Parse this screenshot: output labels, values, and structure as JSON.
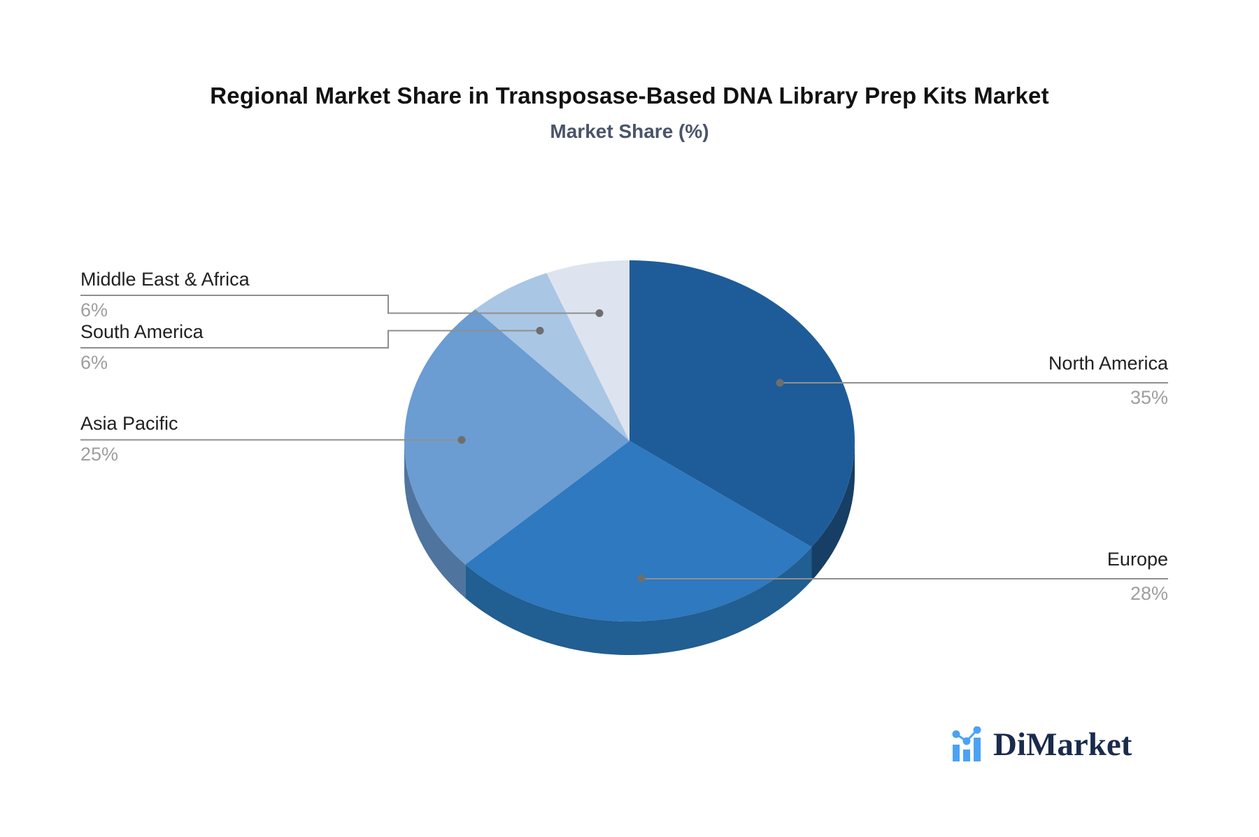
{
  "title": "Regional Market Share in Transposase-Based DNA Library Prep Kits Market",
  "subtitle": "Market Share (%)",
  "logo": {
    "text": "DiMarket",
    "icon_color": "#4ba2f5",
    "text_color": "#1a2b4c"
  },
  "chart_data": {
    "type": "pie",
    "title": "Regional Market Share in Transposase-Based DNA Library Prep Kits Market",
    "subtitle": "Market Share (%)",
    "unit": "%",
    "effect": "3d",
    "start_angle_deg": 0,
    "direction": "clockwise",
    "legend_position": "callout-labels",
    "categories": [
      "North America",
      "Europe",
      "Asia Pacific",
      "South America",
      "Middle East & Africa"
    ],
    "values": [
      35,
      28,
      25,
      6,
      6
    ],
    "series": [
      {
        "name": "North America",
        "value": 35,
        "label": "35%",
        "color": "#1e5c99",
        "side_color": "#173e64"
      },
      {
        "name": "Europe",
        "value": 28,
        "label": "28%",
        "color": "#2e79bf",
        "side_color": "#215e91"
      },
      {
        "name": "Asia Pacific",
        "value": 25,
        "label": "25%",
        "color": "#6b9cd2",
        "side_color": "#4f759e"
      },
      {
        "name": "South America",
        "value": 6,
        "label": "6%",
        "color": "#a9c6e4",
        "side_color": "#8fb3d8"
      },
      {
        "name": "Middle East & Africa",
        "value": 6,
        "label": "6%",
        "color": "#dde4ef",
        "side_color": "#c2cfe2"
      }
    ],
    "callout_line_color": "#8f8f8f",
    "callout_dot_color": "#6e6e6e"
  }
}
